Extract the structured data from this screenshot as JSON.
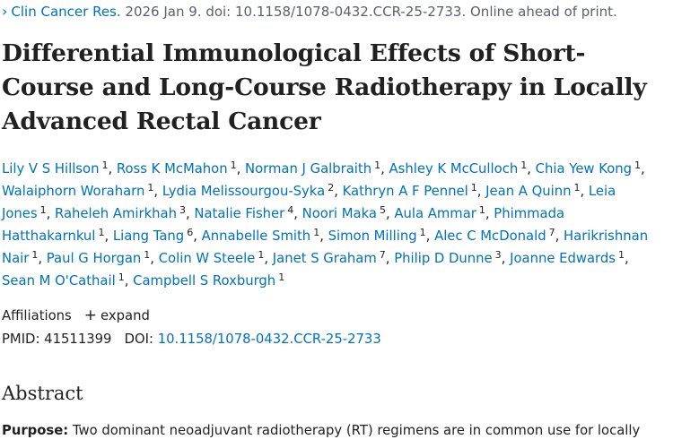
{
  "citation": {
    "journal": "Clin Cancer Res.",
    "details": " 2026 Jan 9. doi: 10.1158/1078-0432.CCR-25-2733. Online ahead of print."
  },
  "article": {
    "title": "Differential Immunological Effects of Short-Course and Long-Course Radiotherapy in Locally Advanced Rectal Cancer"
  },
  "authors": [
    {
      "name": "Lily V S Hillson",
      "aff": "1"
    },
    {
      "name": "Ross K McMahon",
      "aff": "1"
    },
    {
      "name": "Norman J Galbraith",
      "aff": "1"
    },
    {
      "name": "Ashley K McCulloch",
      "aff": "1"
    },
    {
      "name": "Chia Yew Kong",
      "aff": "1"
    },
    {
      "name": "Walaiphorn Woraharn",
      "aff": "1"
    },
    {
      "name": "Lydia Melissourgou-Syka",
      "aff": "2"
    },
    {
      "name": "Kathryn A F Pennel",
      "aff": "1"
    },
    {
      "name": "Jean A Quinn",
      "aff": "1"
    },
    {
      "name": "Leia Jones",
      "aff": "1"
    },
    {
      "name": "Raheleh Amirkhah",
      "aff": "3"
    },
    {
      "name": "Natalie Fisher",
      "aff": "4"
    },
    {
      "name": "Noori Maka",
      "aff": "5"
    },
    {
      "name": "Aula Ammar",
      "aff": "1"
    },
    {
      "name": "Phimmada Hatthakarnkul",
      "aff": "1"
    },
    {
      "name": "Liang Tang",
      "aff": "6"
    },
    {
      "name": "Annabelle Smith",
      "aff": "1"
    },
    {
      "name": "Simon Milling",
      "aff": "1"
    },
    {
      "name": "Alec C McDonald",
      "aff": "7"
    },
    {
      "name": "Harikrishnan Nair",
      "aff": "1"
    },
    {
      "name": "Paul G Horgan",
      "aff": "1"
    },
    {
      "name": "Colin W Steele",
      "aff": "1"
    },
    {
      "name": "Janet S Graham",
      "aff": "7"
    },
    {
      "name": "Philip D Dunne",
      "aff": "3"
    },
    {
      "name": "Joanne Edwards",
      "aff": "1"
    },
    {
      "name": "Sean M O'Cathail",
      "aff": "1"
    },
    {
      "name": "Campbell S Roxburgh",
      "aff": "1"
    }
  ],
  "affiliations": {
    "label": "Affiliations",
    "expand_icon": "plus-icon",
    "expand_label": "expand"
  },
  "ids": {
    "pmid_label": "PMID:",
    "pmid": "41511399",
    "doi_label": "DOI:",
    "doi": "10.1158/1078-0432.CCR-25-2733"
  },
  "abstract": {
    "heading": "Abstract",
    "purpose_label": "Purpose:",
    "purpose_text": " Two dominant neoadjuvant radiotherapy (RT) regimens are in common use for locally"
  }
}
